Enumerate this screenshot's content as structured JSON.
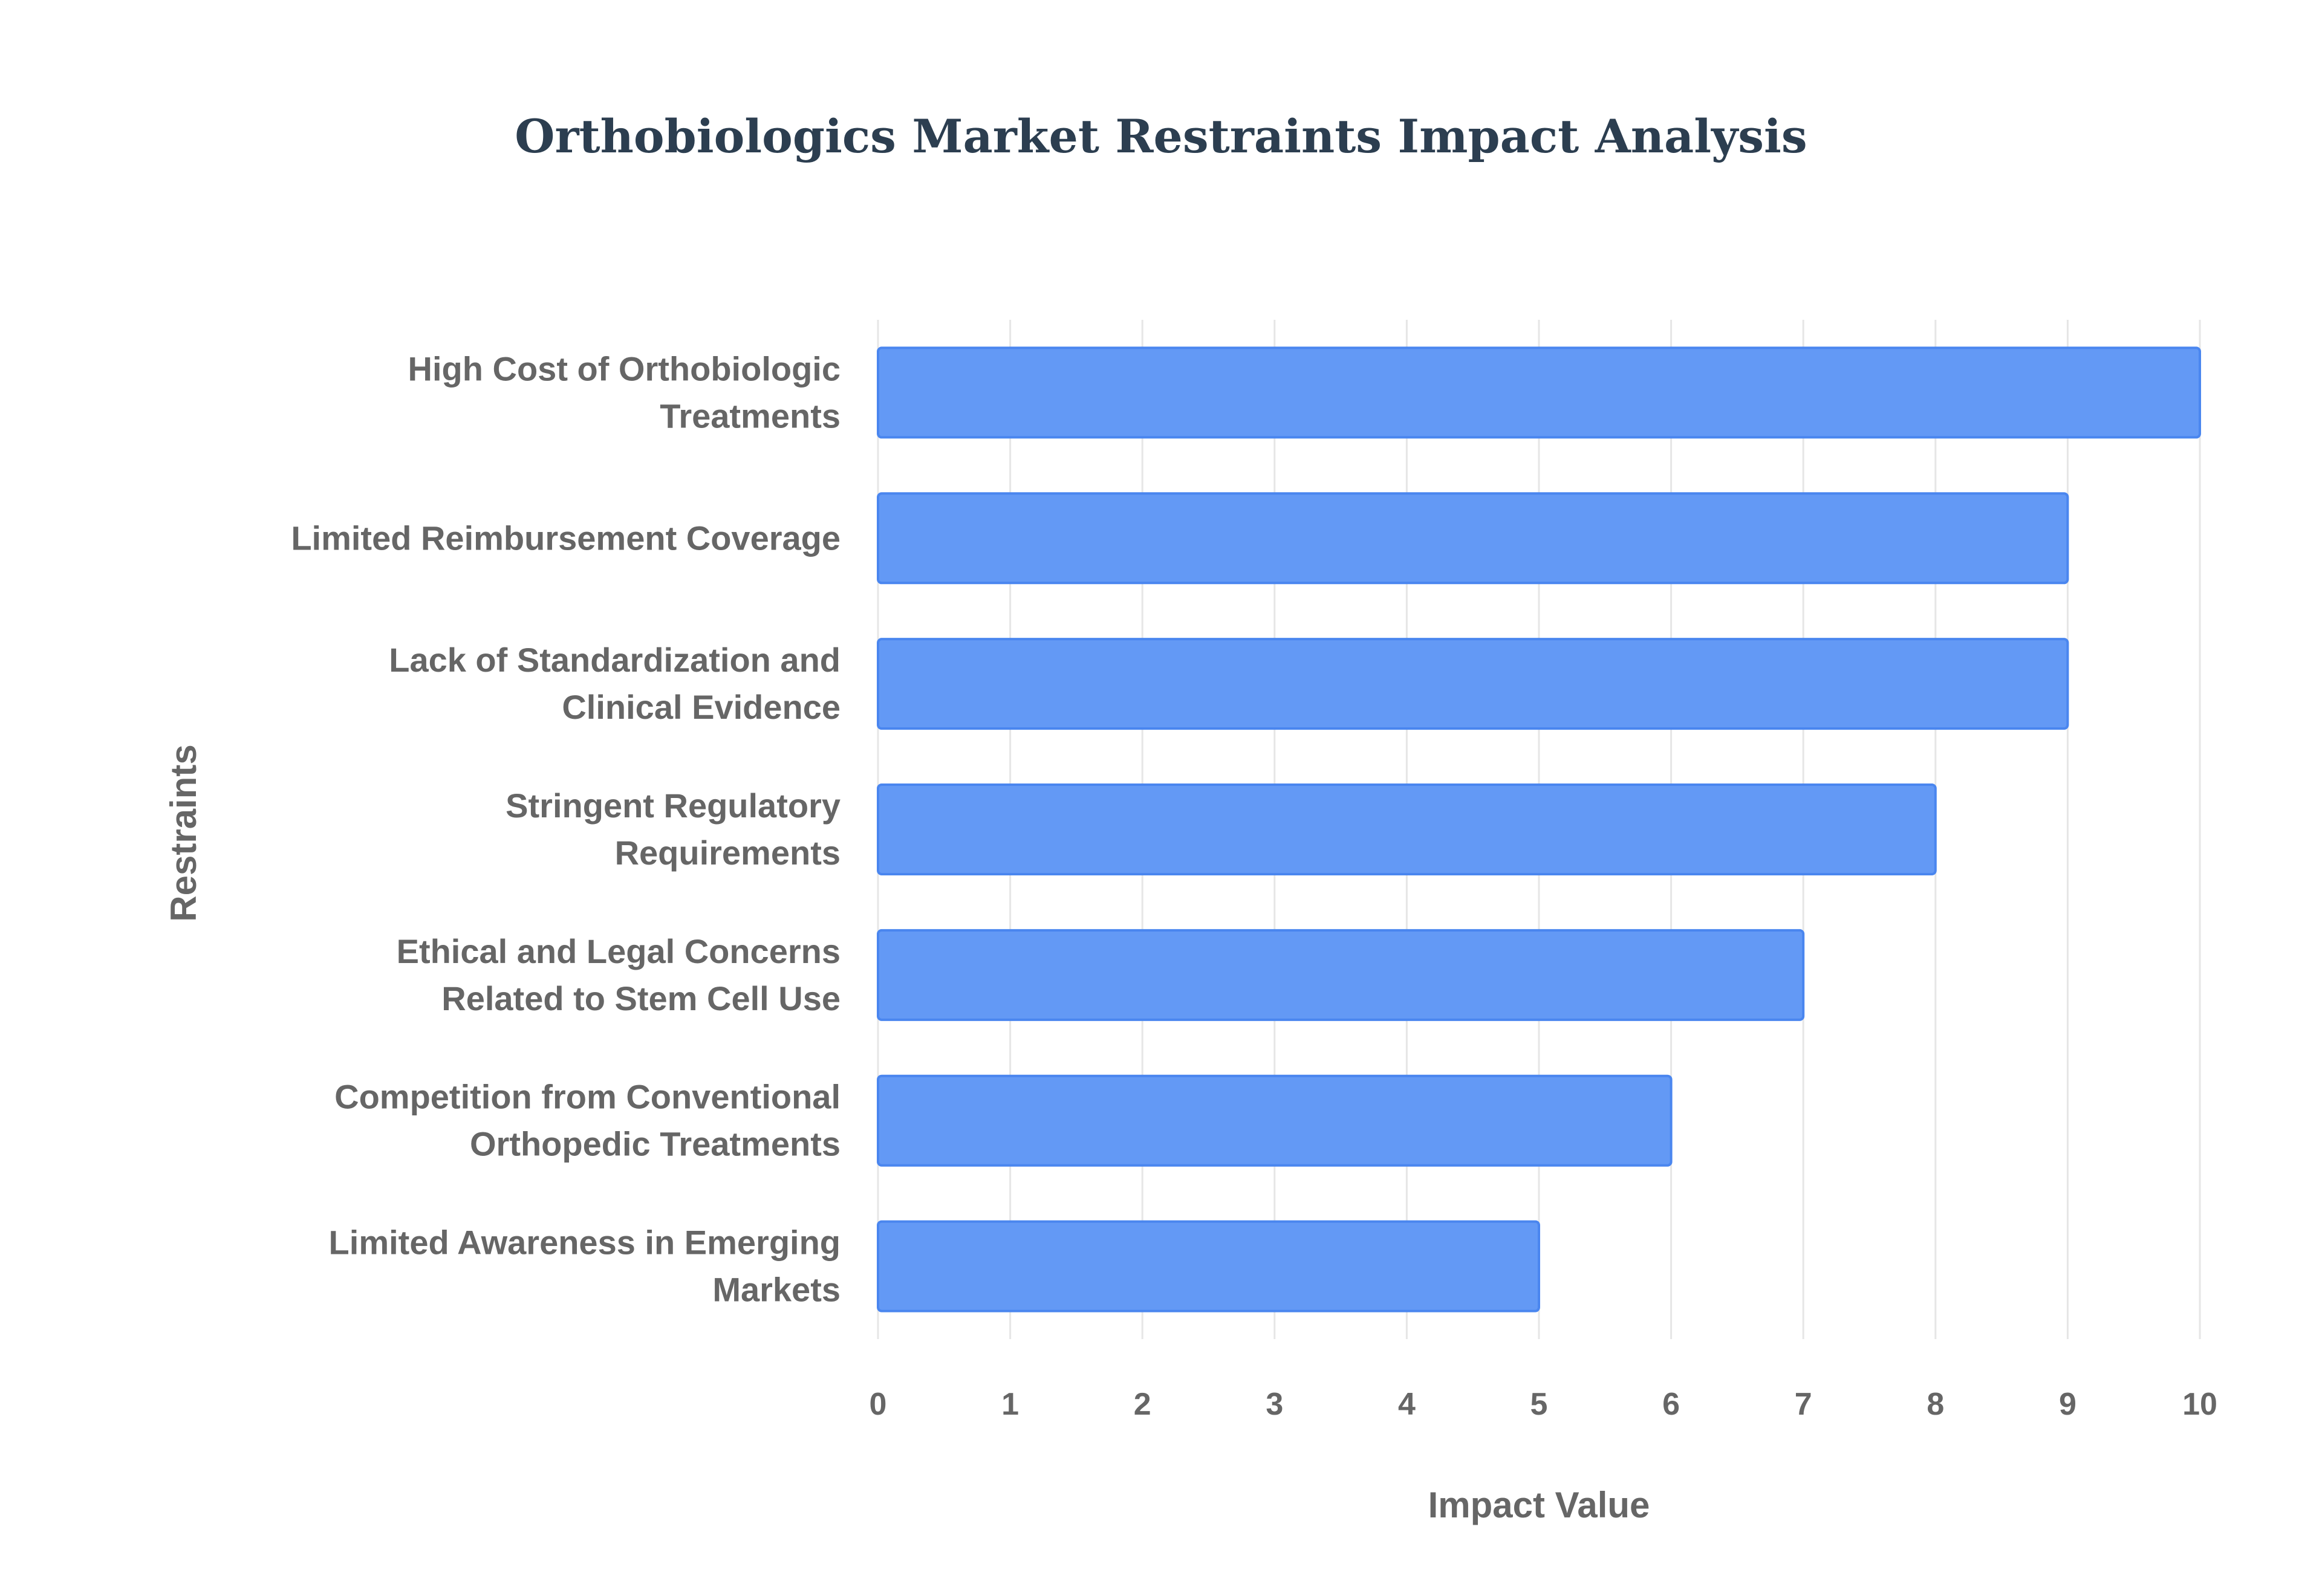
{
  "chart_data": {
    "type": "bar",
    "orientation": "horizontal",
    "title": "Orthobiologics Market Restraints Impact Analysis",
    "xlabel": "Impact Value",
    "ylabel": "Restraints",
    "xlim": [
      0,
      10
    ],
    "xticks": [
      "0",
      "1",
      "2",
      "3",
      "4",
      "5",
      "6",
      "7",
      "8",
      "9",
      "10"
    ],
    "grid": true,
    "categories": [
      [
        "High Cost of Orthobiologic",
        "Treatments"
      ],
      [
        "Limited Reimbursement Coverage"
      ],
      [
        "Lack of Standardization and",
        "Clinical Evidence"
      ],
      [
        "Stringent Regulatory",
        "Requirements"
      ],
      [
        "Ethical and Legal Concerns",
        "Related to Stem Cell Use"
      ],
      [
        "Competition from Conventional",
        "Orthopedic Treatments"
      ],
      [
        "Limited Awareness in Emerging",
        "Markets"
      ]
    ],
    "values": [
      10,
      9,
      9,
      8,
      7,
      6,
      5
    ],
    "bar_color": "#6399f5",
    "bar_border_color": "#4a86ef"
  }
}
